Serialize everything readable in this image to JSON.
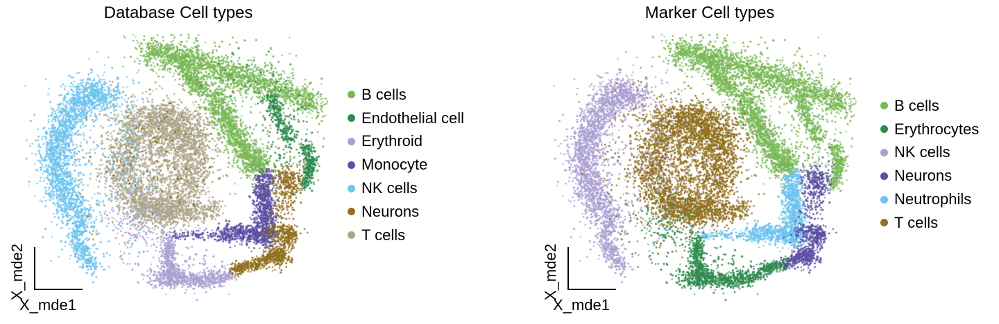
{
  "figure": {
    "background": "#ffffff",
    "text_color": "#000000"
  },
  "chart_data": {
    "type": "scatter",
    "embedding": "MDE",
    "palette": {
      "green": "#7ab957",
      "dark_green": "#2e8b4f",
      "light_purple": "#aba0d2",
      "dark_purple": "#5d50a4",
      "light_blue": "#6ec3ef",
      "brown": "#92701f",
      "tan": "#ada489"
    },
    "panels": [
      {
        "title": "Database Cell types",
        "x_label": "X_mde1",
        "y_label": "X_mde2",
        "scatter_offset": [
          0,
          0
        ],
        "categories": [
          {
            "name": "B cells",
            "color_key": "green"
          },
          {
            "name": "Endothelial cell",
            "color_key": "dark_green"
          },
          {
            "name": "Erythroid",
            "color_key": "light_purple"
          },
          {
            "name": "Monocyte",
            "color_key": "dark_purple"
          },
          {
            "name": "NK cells",
            "color_key": "light_blue"
          },
          {
            "name": "Neurons",
            "color_key": "brown"
          },
          {
            "name": "T cells",
            "color_key": "tan"
          }
        ],
        "cluster_colors": {
          "b_arc": "green",
          "band_specks": "dark_green",
          "crescent": "light_blue",
          "crescent_mix": "tan",
          "blob": "tan",
          "blob_left_mix": "light_blue",
          "blob_specks": "brown",
          "below_crescent": "light_purple",
          "edge_streaks": "dark_green",
          "mono": "dark_purple",
          "patches": "brown",
          "bottom_left_arc": "light_purple",
          "bottom_mid": "brown",
          "bottom_right": "brown"
        }
      },
      {
        "title": "Marker Cell types",
        "x_label": "X_mde1",
        "y_label": "X_mde2",
        "scatter_offset": [
          762,
          0
        ],
        "categories": [
          {
            "name": "B cells",
            "color_key": "green"
          },
          {
            "name": "Erythrocytes",
            "color_key": "dark_green"
          },
          {
            "name": "NK cells",
            "color_key": "light_purple"
          },
          {
            "name": "Neurons",
            "color_key": "dark_purple"
          },
          {
            "name": "Neutrophils",
            "color_key": "light_blue"
          },
          {
            "name": "T cells",
            "color_key": "brown"
          }
        ],
        "cluster_colors": {
          "b_arc": "green",
          "band_specks": "green",
          "crescent": "light_purple",
          "crescent_mix": "brown",
          "blob": "brown",
          "blob_left_mix": "light_purple",
          "blob_specks": "brown",
          "below_crescent": "dark_green",
          "edge_streaks": "green",
          "mono": "light_blue",
          "patches": "dark_purple",
          "bottom_left_arc": "dark_green",
          "bottom_mid": "dark_green",
          "bottom_right": "dark_purple"
        }
      }
    ],
    "clusters": {
      "b_arc": [
        {
          "t": "b",
          "p": [
            [
              213,
              72
            ],
            [
              320,
              95
            ],
            [
              458,
              152
            ]
          ],
          "s": 9,
          "n": 1500
        },
        {
          "t": "b",
          "p": [
            [
              213,
              72
            ],
            [
              320,
              95
            ],
            [
              458,
              152
            ]
          ],
          "s": 22,
          "n": 400
        },
        {
          "t": "b",
          "p": [
            [
              262,
              86
            ],
            [
              268,
              110
            ],
            [
              283,
              132
            ]
          ],
          "s": 6,
          "n": 180
        },
        {
          "t": "b",
          "p": [
            [
              277,
              106
            ],
            [
              285,
              122
            ],
            [
              297,
              133
            ]
          ],
          "s": 5,
          "n": 130
        },
        {
          "t": "b",
          "p": [
            [
              310,
              135
            ],
            [
              327,
              190
            ],
            [
              377,
              245
            ]
          ],
          "s": 9,
          "n": 900
        },
        {
          "t": "b",
          "p": [
            [
              310,
              135
            ],
            [
              327,
              190
            ],
            [
              377,
              245
            ]
          ],
          "s": 20,
          "n": 230
        },
        {
          "t": "g",
          "c": [
            367,
            232
          ],
          "s": [
            10,
            12
          ],
          "n": 150
        },
        {
          "t": "g",
          "c": [
            330,
            150
          ],
          "s": [
            85,
            55
          ],
          "n": 120
        }
      ],
      "band_specks": [
        {
          "t": "g",
          "c": [
            350,
            112
          ],
          "s": [
            55,
            25
          ],
          "n": 55
        }
      ],
      "crescent": [
        {
          "t": "b",
          "p": [
            [
              140,
              122
            ],
            [
              34,
              215
            ],
            [
              120,
              318
            ]
          ],
          "s": 12,
          "n": 1500
        },
        {
          "t": "b",
          "p": [
            [
              140,
              122
            ],
            [
              40,
              215
            ],
            [
              122,
              318
            ]
          ],
          "s": 27,
          "n": 360
        },
        {
          "t": "g",
          "c": [
            140,
            140
          ],
          "s": [
            20,
            11
          ],
          "n": 280
        },
        {
          "t": "b",
          "p": [
            [
              120,
              318
            ],
            [
              98,
              352
            ],
            [
              136,
              386
            ]
          ],
          "s": 6,
          "n": 280
        },
        {
          "t": "b",
          "p": [
            [
              120,
              318
            ],
            [
              98,
              352
            ],
            [
              136,
              386
            ]
          ],
          "s": 13,
          "n": 90
        }
      ],
      "crescent_mix": [
        {
          "t": "g",
          "c": [
            150,
            240
          ],
          "s": [
            24,
            58
          ],
          "n": 120
        }
      ],
      "blob": [
        {
          "t": "r",
          "c": [
            228,
            240
          ],
          "rx": 52,
          "ry": 64,
          "s": 13,
          "n": 1800
        },
        {
          "t": "g",
          "c": [
            228,
            240
          ],
          "s": [
            34,
            44
          ],
          "n": 950
        },
        {
          "t": "g",
          "c": [
            262,
            195
          ],
          "s": [
            26,
            20
          ],
          "n": 450
        },
        {
          "t": "b",
          "p": [
            [
              200,
              295
            ],
            [
              255,
              320
            ],
            [
              312,
              300
            ]
          ],
          "s": 8,
          "n": 450
        },
        {
          "t": "g",
          "c": [
            228,
            165
          ],
          "s": [
            28,
            8
          ],
          "n": 200
        }
      ],
      "blob_left_mix": [
        {
          "t": "g",
          "c": [
            186,
            235
          ],
          "s": [
            20,
            52
          ],
          "n": 150
        }
      ],
      "blob_specks": [
        {
          "t": "g",
          "c": [
            235,
            235
          ],
          "s": [
            45,
            42
          ],
          "n": 110
        }
      ],
      "below_crescent": [
        {
          "t": "g",
          "c": [
            200,
            330
          ],
          "s": [
            25,
            26
          ],
          "n": 150
        }
      ],
      "edge_streaks": [
        {
          "t": "b",
          "p": [
            [
              393,
              141
            ],
            [
              398,
              170
            ],
            [
              420,
              206
            ]
          ],
          "s": 5,
          "n": 260
        },
        {
          "t": "b",
          "p": [
            [
              440,
              209
            ],
            [
              456,
              238
            ],
            [
              437,
              270
            ]
          ],
          "s": 5,
          "n": 310
        },
        {
          "t": "g",
          "c": [
            420,
            205
          ],
          "s": [
            22,
            38
          ],
          "n": 130
        }
      ],
      "mono": [
        {
          "t": "b",
          "p": [
            [
              383,
              252
            ],
            [
              376,
              300
            ],
            [
              386,
              348
            ]
          ],
          "s": 8,
          "n": 800
        },
        {
          "t": "b",
          "p": [
            [
              322,
              338
            ],
            [
              350,
              334
            ],
            [
              386,
              344
            ]
          ],
          "s": 7,
          "n": 450
        },
        {
          "t": "b",
          "p": [
            [
              240,
              340
            ],
            [
              280,
              337
            ],
            [
              322,
              340
            ]
          ],
          "s": 4,
          "n": 90
        }
      ],
      "patches": [
        {
          "t": "g",
          "c": [
            414,
            265
          ],
          "s": [
            10,
            12
          ],
          "n": 240
        },
        {
          "t": "g",
          "c": [
            412,
            298
          ],
          "s": [
            12,
            18
          ],
          "n": 80
        },
        {
          "t": "g",
          "c": [
            408,
            336
          ],
          "s": [
            12,
            7
          ],
          "n": 190
        }
      ],
      "bottom_left_arc": [
        {
          "t": "b",
          "p": [
            [
              247,
              344
            ],
            [
              237,
              370
            ],
            [
              250,
              398
            ]
          ],
          "s": 5,
          "n": 280
        },
        {
          "t": "g",
          "c": [
            240,
            400
          ],
          "s": [
            12,
            9
          ],
          "n": 200
        },
        {
          "t": "b",
          "p": [
            [
              250,
              402
            ],
            [
              290,
              410
            ],
            [
              333,
              397
            ]
          ],
          "s": 6,
          "n": 450
        },
        {
          "t": "g",
          "c": [
            260,
            390
          ],
          "s": [
            34,
            20
          ],
          "n": 120
        }
      ],
      "bottom_mid": [
        {
          "t": "b",
          "p": [
            [
              334,
              390
            ],
            [
              355,
              385
            ],
            [
              372,
              380
            ]
          ],
          "s": 4,
          "n": 200
        }
      ],
      "bottom_right": [
        {
          "t": "b",
          "p": [
            [
              370,
              382
            ],
            [
              390,
              372
            ],
            [
              404,
              363
            ]
          ],
          "s": 5,
          "n": 170
        },
        {
          "t": "g",
          "c": [
            400,
            371
          ],
          "s": [
            9,
            8
          ],
          "n": 150
        },
        {
          "t": "b",
          "p": [
            [
              404,
              363
            ],
            [
              415,
              350
            ],
            [
              424,
              338
            ]
          ],
          "s": 5,
          "n": 110
        }
      ]
    }
  }
}
